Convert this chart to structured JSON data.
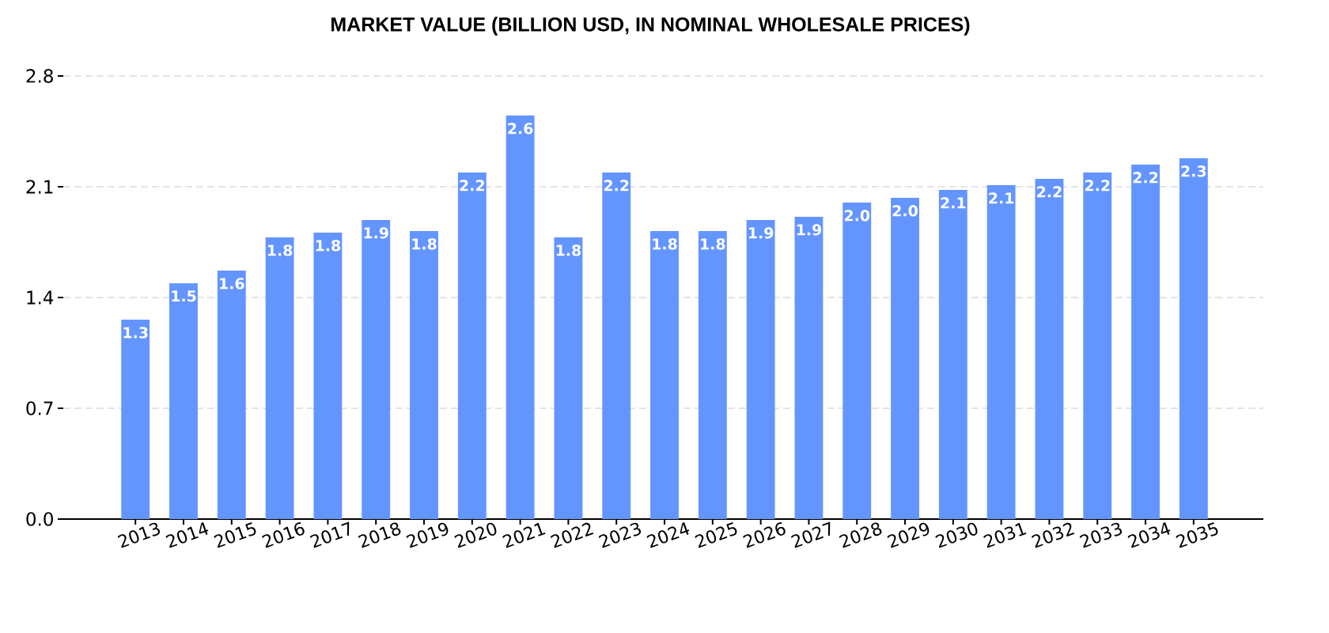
{
  "chart_data": {
    "type": "bar",
    "title": "MARKET VALUE (BILLION USD, IN NOMINAL WHOLESALE PRICES)",
    "categories": [
      "2013",
      "2014",
      "2015",
      "2016",
      "2017",
      "2018",
      "2019",
      "2020",
      "2021",
      "2022",
      "2023",
      "2024",
      "2025",
      "2026",
      "2027",
      "2028",
      "2029",
      "2030",
      "2031",
      "2032",
      "2033",
      "2034",
      "2035"
    ],
    "values": [
      1.26,
      1.49,
      1.57,
      1.78,
      1.81,
      1.89,
      1.82,
      2.19,
      2.55,
      1.78,
      2.19,
      1.82,
      1.82,
      1.89,
      1.91,
      2.0,
      2.03,
      2.08,
      2.11,
      2.15,
      2.19,
      2.24,
      2.28
    ],
    "value_labels": [
      "1.3",
      "1.5",
      "1.6",
      "1.8",
      "1.8",
      "1.9",
      "1.8",
      "2.2",
      "2.6",
      "1.8",
      "2.2",
      "1.8",
      "1.8",
      "1.9",
      "1.9",
      "2.0",
      "2.0",
      "2.1",
      "2.1",
      "2.2",
      "2.2",
      "2.2",
      "2.3"
    ],
    "color": "#6495ff",
    "ylim": [
      0,
      2.8
    ],
    "yticks": [
      {
        "value": 0,
        "label": "0.0"
      },
      0.7,
      1.4,
      2.1,
      2.8
    ],
    "grid": "y"
  }
}
